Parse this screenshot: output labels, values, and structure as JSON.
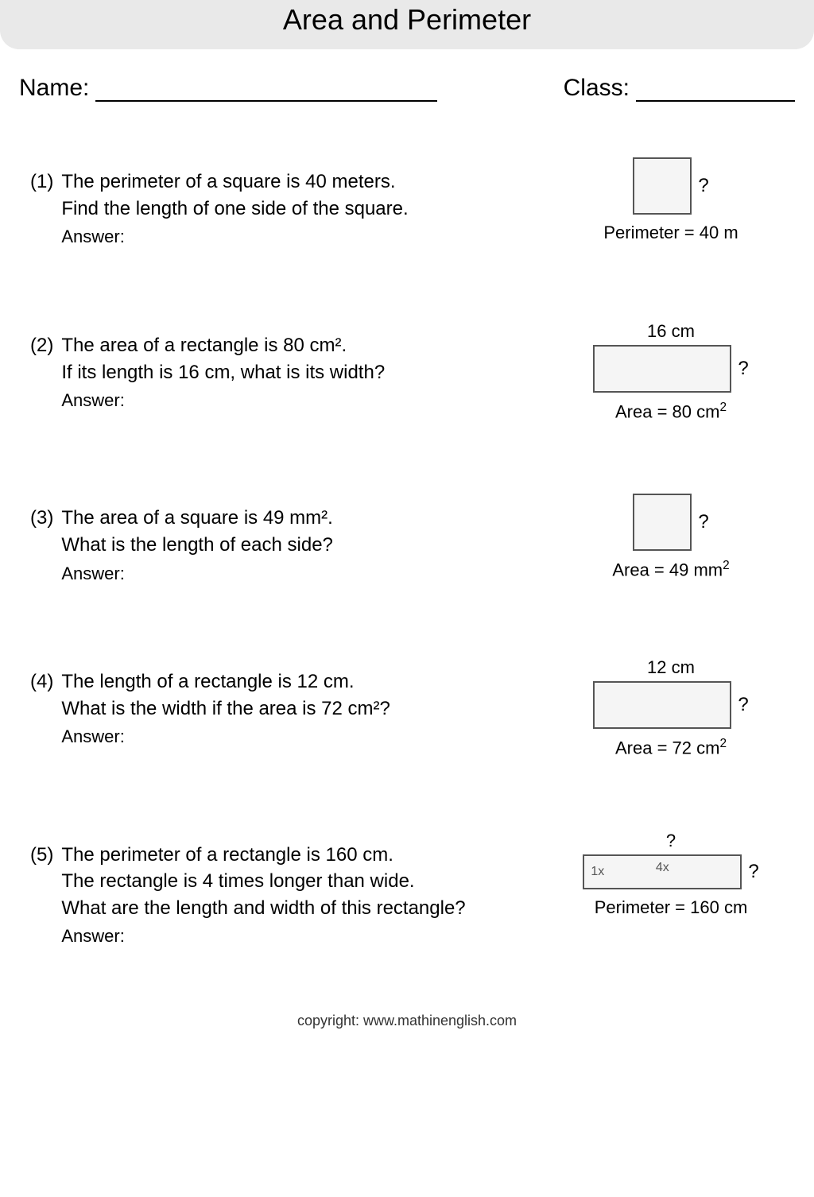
{
  "title": "Area and Perimeter",
  "labels": {
    "name": "Name:",
    "class": "Class:",
    "answer": "Answer:"
  },
  "problems": [
    {
      "num": "(1)",
      "text": "The perimeter of a square is 40 meters.\nFind the length of one side of the square.",
      "diagram": {
        "shape": "square",
        "sideMark": "?",
        "under": "Perimeter = 40 m"
      }
    },
    {
      "num": "(2)",
      "text": "The area of a rectangle is 80 cm².\nIf its length is 16 cm, what is its width?",
      "diagram": {
        "shape": "rect",
        "top": "16 cm",
        "sideMark": "?",
        "under": "Area = 80 cm",
        "underSup": "2"
      }
    },
    {
      "num": "(3)",
      "text": "The area of a square is 49 mm².\nWhat is the length of each side?",
      "diagram": {
        "shape": "square",
        "sideMark": "?",
        "under": "Area = 49 mm",
        "underSup": "2"
      }
    },
    {
      "num": "(4)",
      "text": "The length of a rectangle is 12 cm.\nWhat is the width if the area is 72 cm²?",
      "diagram": {
        "shape": "rect",
        "top": "12 cm",
        "sideMark": "?",
        "under": "Area = 72 cm",
        "underSup": "2"
      }
    },
    {
      "num": "(5)",
      "text": "The perimeter of a rectangle is 160 cm.\nThe rectangle is 4 times longer than wide.\nWhat are the length and width of this rectangle?",
      "diagram": {
        "shape": "rect-thin",
        "top": "?",
        "sideMark": "?",
        "innerLeft": "1x",
        "innerCenter": "4x",
        "under": "Perimeter = 160 cm"
      }
    }
  ],
  "copyright": "copyright:   www.mathinenglish.com"
}
